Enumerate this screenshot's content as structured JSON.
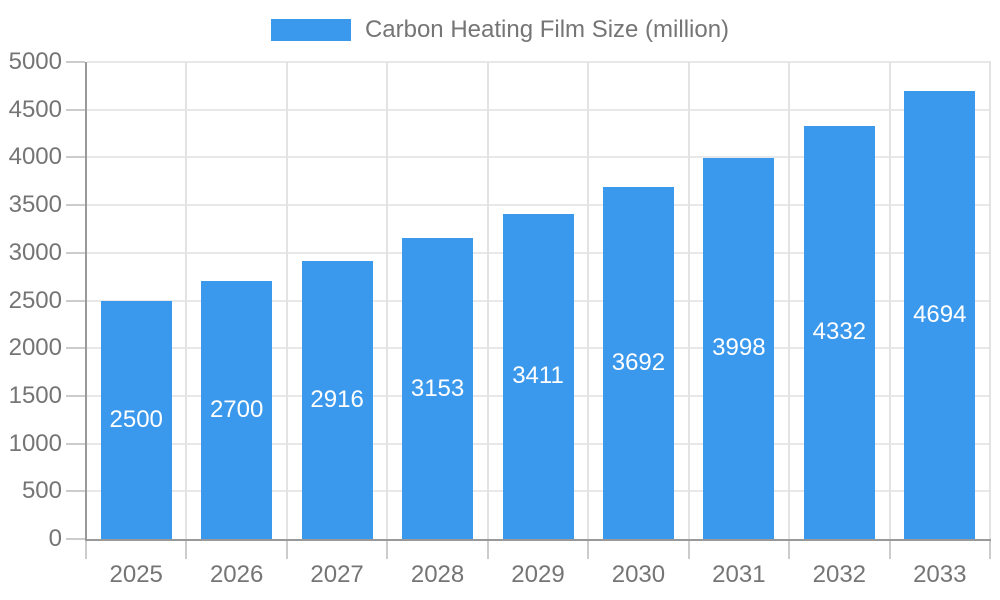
{
  "legend": {
    "label": "Carbon Heating Film Size (million)",
    "swatch_color": "#3b99ed"
  },
  "chart_data": {
    "type": "bar",
    "title": "",
    "series_name": "Carbon Heating Film Size (million)",
    "categories": [
      "2025",
      "2026",
      "2027",
      "2028",
      "2029",
      "2030",
      "2031",
      "2032",
      "2033"
    ],
    "values": [
      2500,
      2700,
      2916,
      3153,
      3411,
      3692,
      3998,
      4332,
      4694
    ],
    "xlabel": "",
    "ylabel": "",
    "ylim": [
      0,
      5000
    ],
    "ytick_step": 500,
    "grid": true,
    "legend_position": "top",
    "value_labels": "inside-center"
  },
  "colors": {
    "bar": "#3b99ed",
    "axis": "#999999",
    "grid_h": "#e8e8e8",
    "grid_v": "#e3e3e3",
    "tick": "#cccccc",
    "text": "#757575",
    "value_text": "#ffffff",
    "background": "#ffffff"
  }
}
